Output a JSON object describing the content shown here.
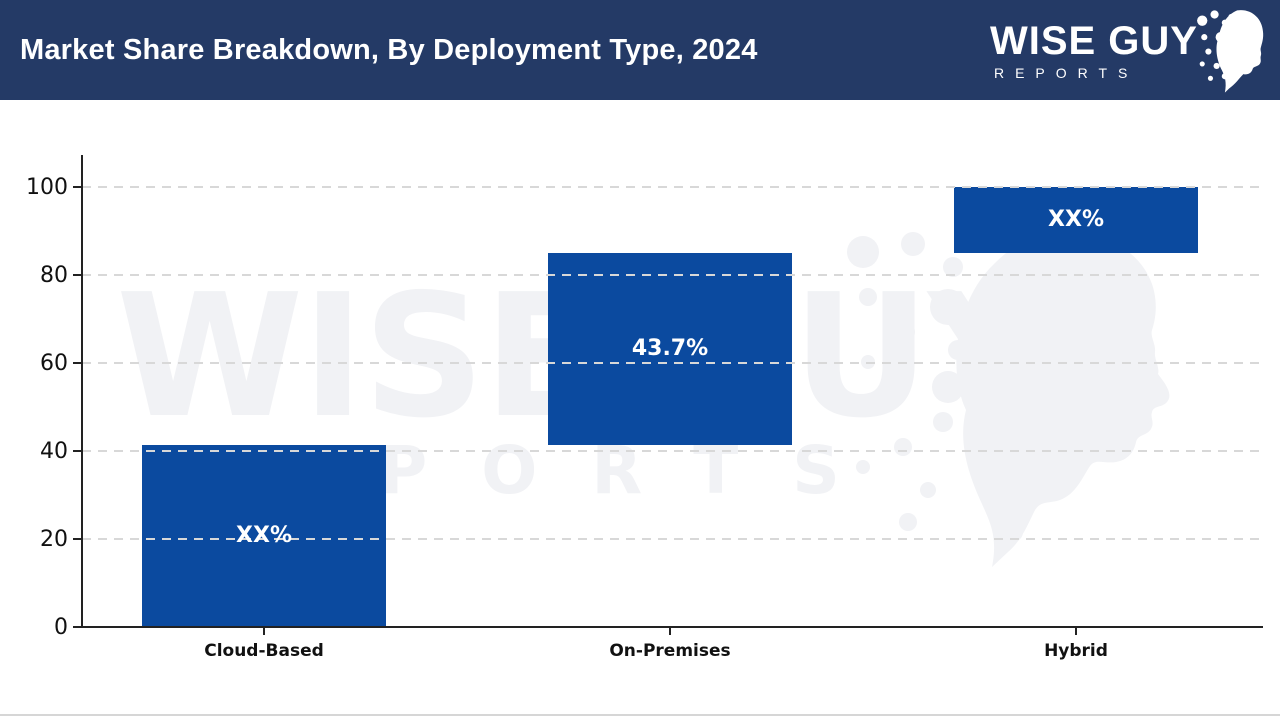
{
  "header": {
    "title": "Market Share Breakdown, By Deployment Type, 2024",
    "logo": {
      "line1": "WISE GUY",
      "line2": "REPORTS"
    }
  },
  "watermark": {
    "line1": "WISE GUY",
    "line2": "REPORTS"
  },
  "chart_data": {
    "type": "bar",
    "variant": "waterfall-stacked-segments",
    "title": "Market Share Breakdown, By Deployment Type, 2024",
    "categories": [
      "Cloud-Based",
      "On-Premises",
      "Hybrid"
    ],
    "segments": [
      {
        "category": "Cloud-Based",
        "start": 0,
        "end": 41.3,
        "label": "XX%"
      },
      {
        "category": "On-Premises",
        "start": 41.3,
        "end": 85.0,
        "label": "43.7%"
      },
      {
        "category": "Hybrid",
        "start": 85.0,
        "end": 100,
        "label": "XX%"
      }
    ],
    "values_shown": [
      "XX%",
      "43.7%",
      "XX%"
    ],
    "xlabel": "",
    "ylabel": "",
    "y_ticks": [
      0,
      20,
      40,
      60,
      80,
      100
    ],
    "ylim": [
      0,
      107
    ],
    "bar_color": "#0b4a9f",
    "grid": {
      "axis": "y",
      "style": "dashed",
      "color": "#d8d8d8"
    },
    "legend": "none"
  },
  "colors": {
    "header_bg": "#243a66",
    "bar": "#0b4a9f",
    "axis": "#222222",
    "grid": "#d8d8d8",
    "watermark": "#f1f2f5",
    "bottom_rule": "#d6d6d6"
  }
}
